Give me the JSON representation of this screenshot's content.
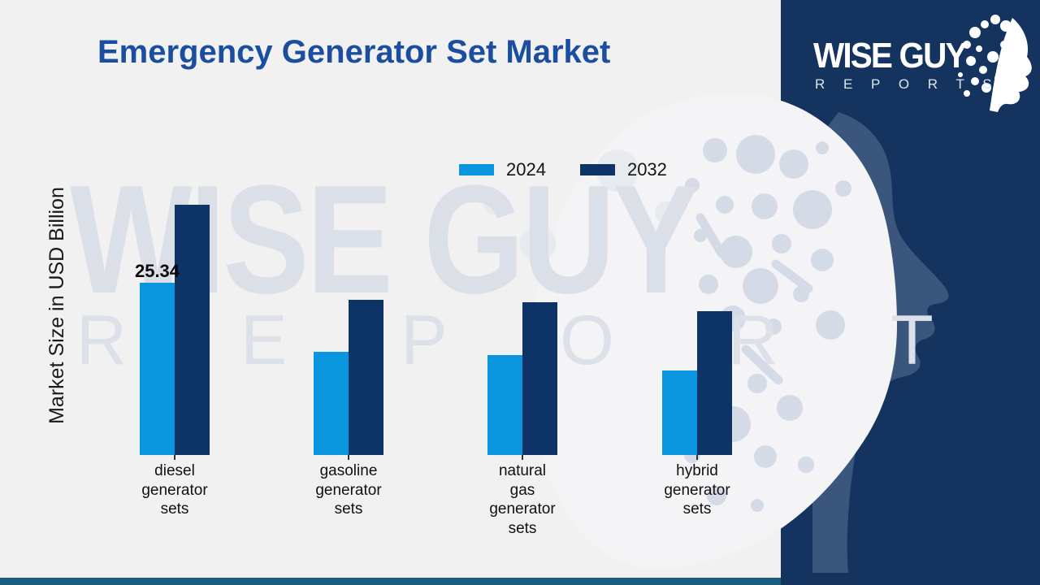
{
  "title": {
    "text": "Emergency Generator Set Market",
    "color": "#1b4e9e"
  },
  "y_axis": {
    "label": "Market Size in USD Billion"
  },
  "annotation": {
    "text": "25.34"
  },
  "watermark": {
    "line1": "WISE GUY",
    "line2": "R E P O R T S"
  },
  "logo": {
    "line1": "WISE GUY",
    "line2": "R E P O R T S"
  },
  "colors": {
    "background": "#f1f1f2",
    "bar_2024": "#0a96de",
    "bar_2032": "#0e3366",
    "navy_panel": "#14335f",
    "face_profile": "#3a567c",
    "accent_strip": "#1a5f80",
    "watermark": "#dbdfe7",
    "title": "#1b4e9e"
  },
  "chart_data": {
    "type": "bar",
    "title": "Emergency Generator Set Market",
    "ylabel": "Market Size in USD Billion",
    "categories": [
      "diesel generator sets",
      "gasoline generator sets",
      "natural gas generator sets",
      "hybrid generator sets"
    ],
    "series": [
      {
        "name": "2024",
        "color": "#0a96de",
        "values": [
          25.34,
          15.2,
          14.7,
          12.4
        ]
      },
      {
        "name": "2032",
        "color": "#0e3366",
        "values": [
          36.8,
          22.8,
          22.5,
          21.2
        ]
      }
    ],
    "value_labels": [
      {
        "series": "2024",
        "category": "diesel generator sets",
        "text": "25.34"
      }
    ],
    "ylim": [
      0,
      40
    ],
    "legend_position": "top-center",
    "grid": false
  }
}
